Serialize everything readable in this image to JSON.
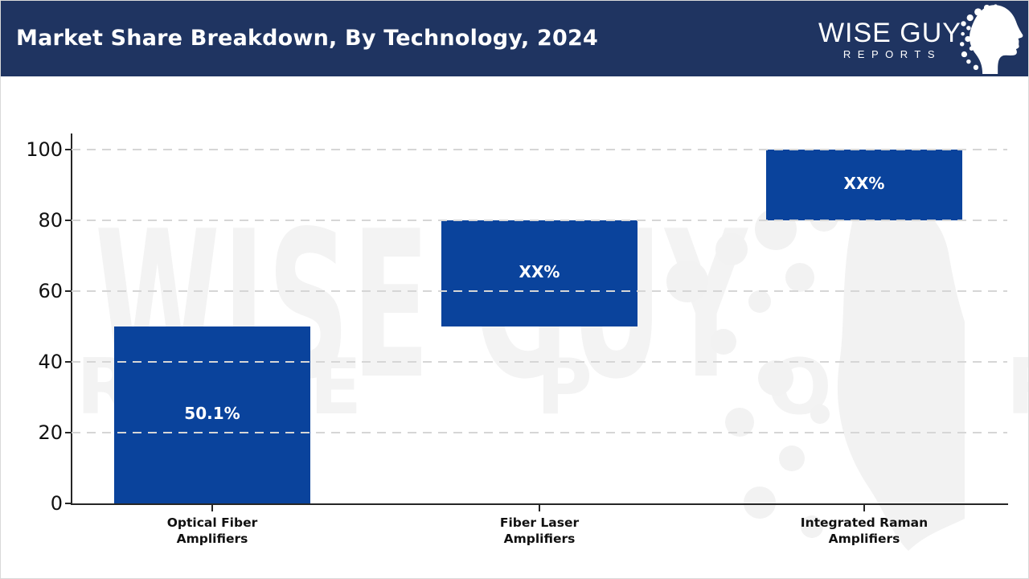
{
  "header": {
    "title": "Market Share Breakdown, By Technology, 2024",
    "bg_color": "#1f3461",
    "logo": {
      "line1": "WISE GUY",
      "line2": "REPORTS"
    }
  },
  "watermark": {
    "line1": "WISE GUY",
    "line2": "R E P O R T S"
  },
  "chart_data": {
    "type": "bar",
    "subtype": "floating-segment (waterfall-style) bars",
    "title": "Market Share Breakdown, By Technology, 2024",
    "xlabel": "",
    "ylabel": "",
    "categories": [
      [
        "Optical Fiber",
        "Amplifiers"
      ],
      [
        "Fiber Laser",
        "Amplifiers"
      ],
      [
        "Integrated Raman",
        "Amplifiers"
      ]
    ],
    "series": [
      {
        "name": "Market share 2024 (%)",
        "segments": [
          {
            "start": 0,
            "end": 50.1,
            "label": "50.1%"
          },
          {
            "start": 50.1,
            "end": 80.0,
            "label": "XX%"
          },
          {
            "start": 80.0,
            "end": 99.9,
            "label": "XX%"
          }
        ]
      }
    ],
    "yticks": [
      0,
      20,
      40,
      60,
      80,
      100
    ],
    "ylim": [
      0,
      104.5
    ],
    "grid": "horizontal dashed, drawn above bars",
    "legend": "none",
    "bar_color": "#0a439c",
    "bar_label_color": "#ffffff",
    "gridline_color": "#d6d6d6",
    "axis_color": "#262626",
    "tick_label_color": "#111111"
  }
}
